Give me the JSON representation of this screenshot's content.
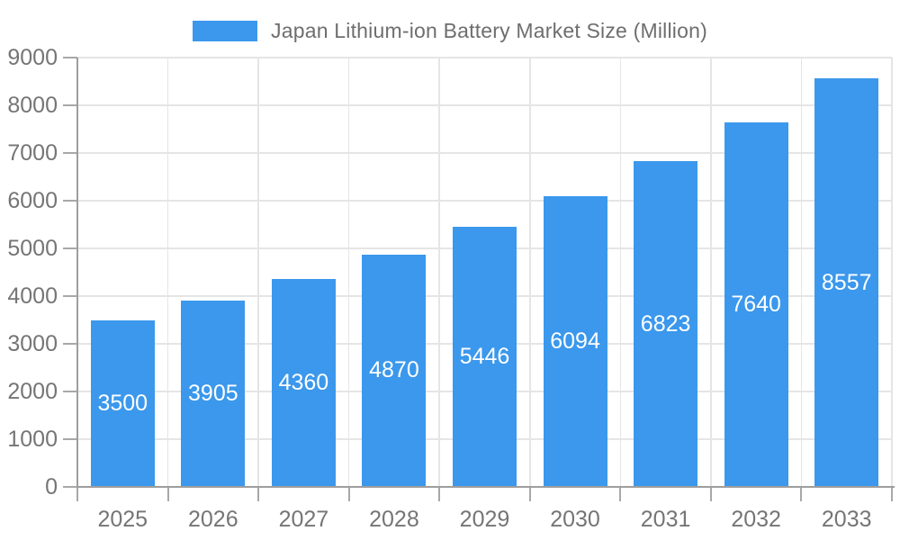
{
  "chart_data": {
    "type": "bar",
    "title": "Japan Lithium-ion Battery Market Size (Million)",
    "categories": [
      "2025",
      "2026",
      "2027",
      "2028",
      "2029",
      "2030",
      "2031",
      "2032",
      "2033"
    ],
    "values": [
      3500,
      3905,
      4360,
      4870,
      5446,
      6094,
      6823,
      7640,
      8557
    ],
    "series": [
      {
        "name": "Japan Lithium-ion Battery Market Size (Million)",
        "values": [
          3500,
          3905,
          4360,
          4870,
          5446,
          6094,
          6823,
          7640,
          8557
        ]
      }
    ],
    "xlabel": "",
    "ylabel": "",
    "ylim": [
      0,
      9000
    ],
    "ytick_step": 1000,
    "ytick_labels": [
      "0",
      "1000",
      "2000",
      "3000",
      "4000",
      "5000",
      "6000",
      "7000",
      "8000",
      "9000"
    ],
    "grid": true,
    "legend_position": "top",
    "value_labels": "inside-center-white"
  },
  "legend": {
    "label": "Japan Lithium-ion Battery Market Size (Million)"
  },
  "colors": {
    "background": "#FFFFFF",
    "bar": "#3B98EC",
    "axis": "#9E9E9E",
    "grid": "#E5E5E5",
    "tick_mark": "#A8A8A8",
    "tick_label": "#757575",
    "legend_text": "#6E6E6E",
    "value_label": "#FFFFFF"
  }
}
